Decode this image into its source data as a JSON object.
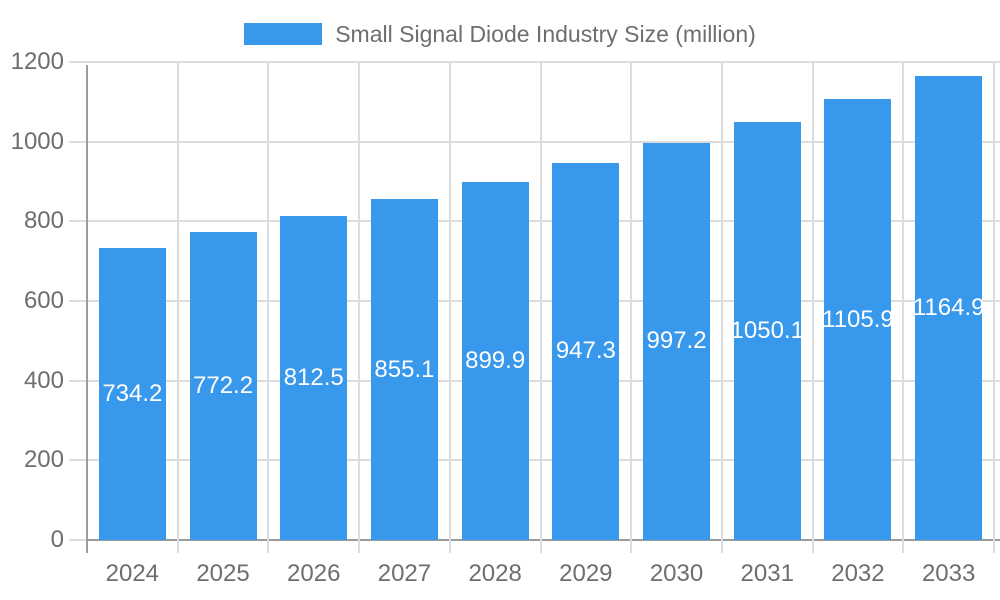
{
  "chart_data": {
    "type": "bar",
    "title": "Small Signal Diode Industry Size (million)",
    "categories": [
      "2024",
      "2025",
      "2026",
      "2027",
      "2028",
      "2029",
      "2030",
      "2031",
      "2032",
      "2033"
    ],
    "series": [
      {
        "name": "Small Signal Diode Industry Size (million)",
        "values": [
          734.2,
          772.2,
          812.5,
          855.1,
          899.9,
          947.3,
          997.2,
          1050.1,
          1105.9,
          1164.9
        ]
      }
    ],
    "value_labels": [
      "734.2",
      "772.2",
      "812.5",
      "855.1",
      "899.9",
      "947.3",
      "997.2",
      "1050.1",
      "1105.9",
      "1164.9"
    ],
    "xlabel": "",
    "ylabel": "",
    "ylim": [
      0,
      1200
    ],
    "yticks": [
      0,
      200,
      400,
      600,
      800,
      1000,
      1200
    ],
    "ytick_labels": [
      "0",
      "200",
      "400",
      "600",
      "800",
      "1000",
      "1200"
    ],
    "grid": "on",
    "legend_position": "top-center",
    "colors": {
      "bar": "#3898EC",
      "bar_value_text": "#ffffff",
      "axis_text": "#6e6e6e",
      "gridline": "#dcdcdc",
      "axis_line": "#9b9b9b",
      "background": "#ffffff"
    }
  }
}
